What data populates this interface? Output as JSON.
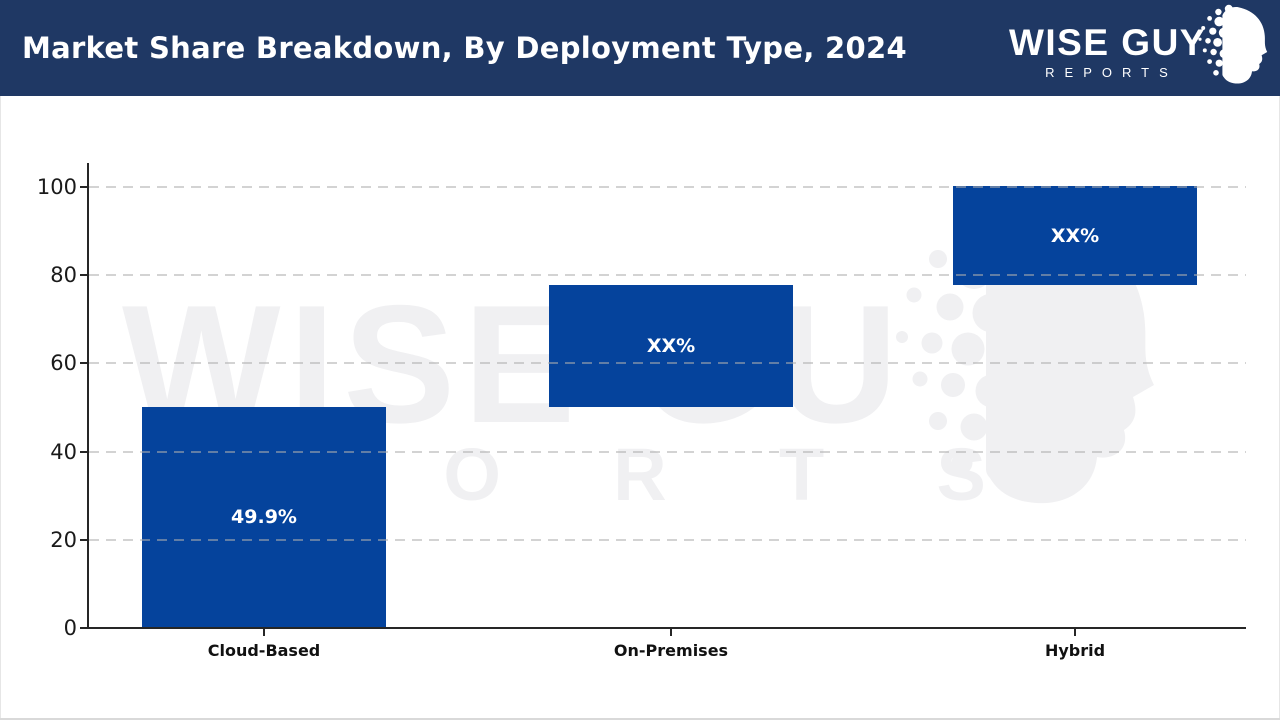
{
  "header": {
    "title": "Market Share Breakdown, By Deployment Type, 2024",
    "bg_color": "#1f3864",
    "logo": {
      "line1": "WISE GUY",
      "line2": "REPORTS"
    }
  },
  "watermark": {
    "line1": "WISE GU",
    "line2": "P O R T S"
  },
  "chart_data": {
    "type": "bar",
    "variant": "stacked-waterfall-floating-bars",
    "title": "Market Share Breakdown, By Deployment Type, 2024",
    "categories": [
      "Cloud-Based",
      "On-Premises",
      "Hybrid"
    ],
    "segments": [
      {
        "category": "Cloud-Based",
        "start": 0,
        "end": 49.9,
        "label": "49.9%"
      },
      {
        "category": "On-Premises",
        "start": 49.9,
        "end": 77.5,
        "label": "XX%"
      },
      {
        "category": "Hybrid",
        "start": 77.5,
        "end": 100,
        "label": "XX%"
      }
    ],
    "yticks": [
      0,
      20,
      40,
      60,
      80,
      100
    ],
    "ylim": [
      0,
      105
    ],
    "xlabel": "",
    "ylabel": "",
    "legend": "none",
    "grid": "horizontal-dashed-over-bars",
    "bar_color": "#05439c",
    "bar_label_color": "#ffffff",
    "axis_color": "#262626",
    "gridline_color": "#d9d9d9",
    "tick_label_color": "#1a1a1a"
  }
}
